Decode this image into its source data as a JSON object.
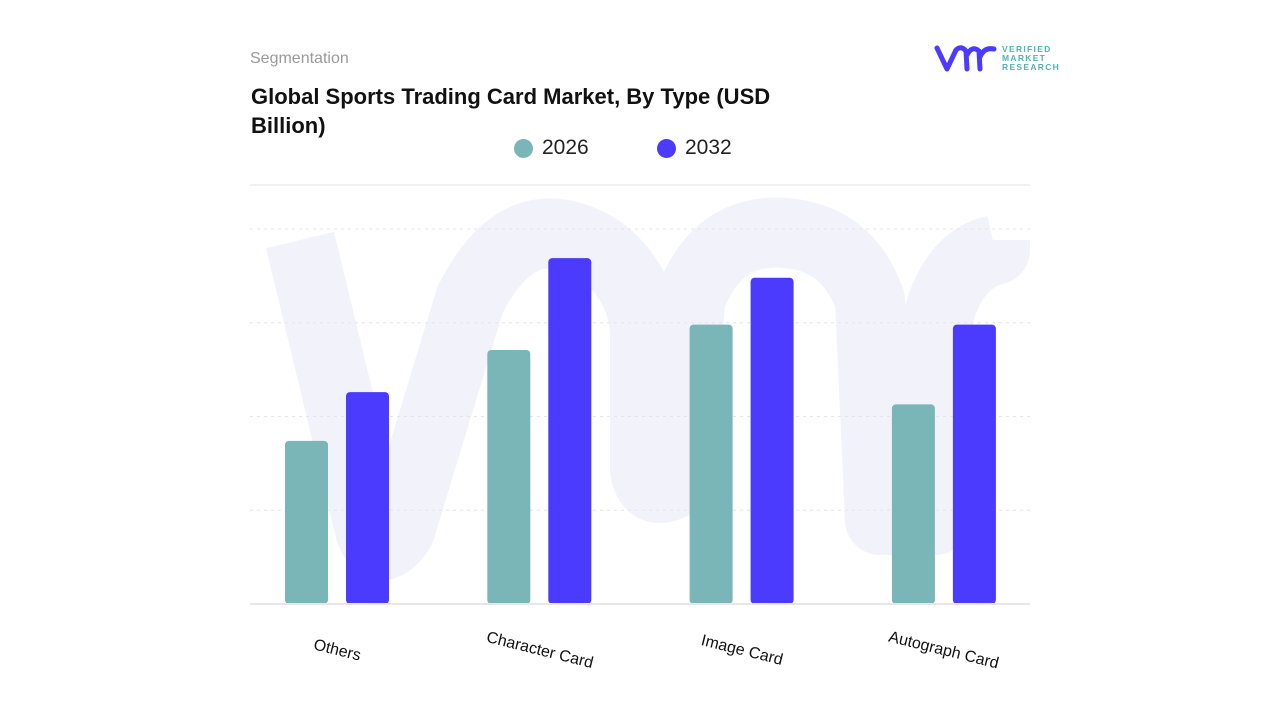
{
  "header": {
    "segment_label": "Segmentation",
    "title": "Global Sports Trading Card Market, By Type (USD Billion)"
  },
  "logo": {
    "mark": "vmr",
    "text_lines": [
      "VERIFIED",
      "MARKET",
      "RESEARCH"
    ]
  },
  "colors": {
    "series_2026": "#7ab5b8",
    "series_2032": "#4b3aff",
    "gridline": "#e6e6ec",
    "watermark": "#f2f3fa"
  },
  "chart_data": {
    "type": "bar",
    "title": "Global Sports Trading Card Market, By Type (USD Billion)",
    "categories": [
      "Others",
      "Character Card",
      "Image Card",
      "Autograph Card"
    ],
    "series": [
      {
        "name": "2026",
        "values": [
          1.74,
          2.71,
          2.98,
          2.13
        ]
      },
      {
        "name": "2032",
        "values": [
          2.26,
          3.69,
          3.48,
          2.98
        ]
      }
    ],
    "ylim": [
      0,
      4
    ],
    "y_tick_labels_shown": false,
    "grid": true,
    "legend": "top-center",
    "xlabel": "",
    "ylabel": ""
  }
}
